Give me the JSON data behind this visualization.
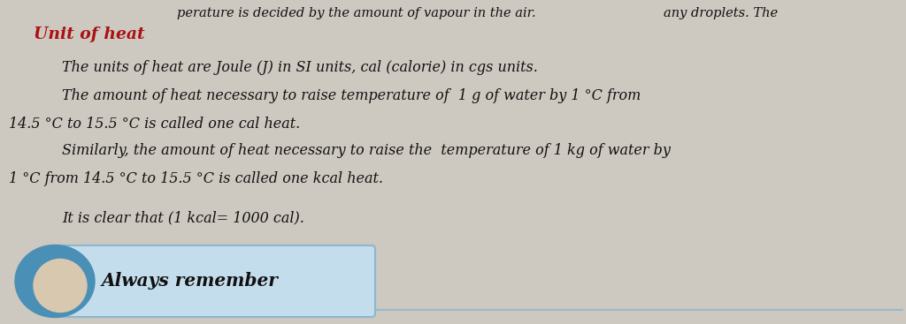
{
  "bg_color": "#cdc8c0",
  "top_text_left": "perature is decided by the amount of vapour in the air.",
  "top_text_right": "any droplets. The",
  "heading": "Unit of heat",
  "heading_color": "#aa1111",
  "para1": "The units of heat are Joule (J) in SI units, cal (calorie) in cgs units.",
  "para2_line1": "The amount of heat necessary to raise temperature of  1 g of water by 1 °C from",
  "para2_line2": "14.5 °C to 15.5 °C is called one cal heat.",
  "para3_line1": "Similarly, the amount of heat necessary to raise the  temperature of 1 kg of water by",
  "para3_line2": "1 °C from 14.5 °C to 15.5 °C is called one kcal heat.",
  "para4": "It is clear that (1 kcal= 1000 cal).",
  "banner_text": "Always remember",
  "banner_bg": "#c4dded",
  "banner_edge": "#8ab8d0",
  "banner_text_color": "#111111",
  "person_circle_color": "#4a8fb5",
  "text_color": "#111111",
  "font_size_top": 10.5,
  "font_size_heading": 13.5,
  "font_size_body": 11.5,
  "font_size_banner": 14.5
}
